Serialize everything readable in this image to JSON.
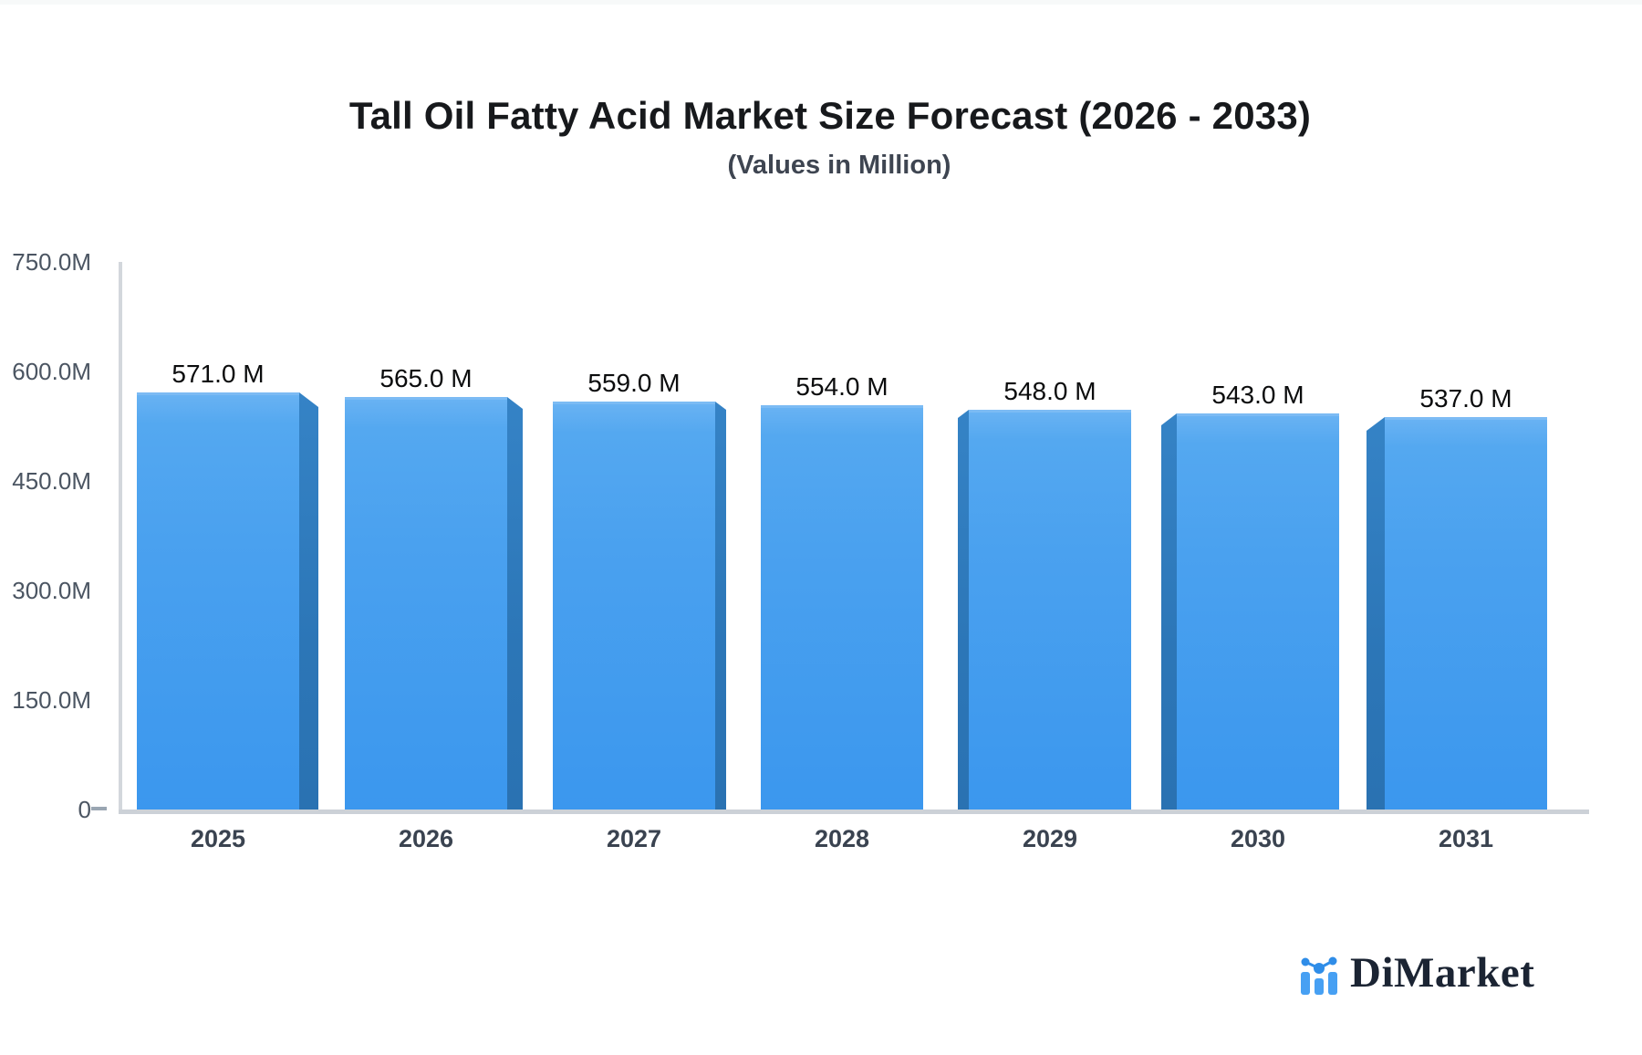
{
  "chart_data": {
    "type": "bar",
    "title": "Tall Oil Fatty Acid Market Size Forecast (2026 - 2033)",
    "subtitle": "(Values in Million)",
    "categories": [
      "2025",
      "2026",
      "2027",
      "2028",
      "2029",
      "2030",
      "2031"
    ],
    "values": [
      571,
      565,
      559,
      554,
      548,
      543,
      537
    ],
    "value_labels": [
      "571.0 M",
      "565.0 M",
      "559.0 M",
      "554.0 M",
      "548.0 M",
      "543.0 M",
      "537.0 M"
    ],
    "unit": "M",
    "xlabel": "",
    "ylabel": "",
    "ylim": [
      0,
      750
    ],
    "yticks": [
      {
        "label": "750.0M",
        "value": 750
      },
      {
        "label": "600.0M",
        "value": 600
      },
      {
        "label": "450.0M",
        "value": 450
      },
      {
        "label": "300.0M",
        "value": 300
      },
      {
        "label": "150.0M",
        "value": 150
      },
      {
        "label": "0",
        "value": 0
      }
    ],
    "grid": false,
    "legend": "none",
    "bar_style": "3d-extruded",
    "colors": {
      "bar_face_top": "#68b2f3",
      "bar_face_bottom": "#3b97ee",
      "bar_side": "#2c76b7",
      "bar_top_highlight": "#7cbbf4",
      "axis_line": "#ccd1d7",
      "tick_text": "#4b5562",
      "category_text": "#3a4350",
      "value_text": "#0b0c0d"
    }
  },
  "logo": {
    "name": "DiMarket",
    "icon": "mini-bar-line-chart-icon",
    "icon_color": "#47a0f3",
    "accent_color": "#2f8de8",
    "text_color": "#1b2433"
  }
}
